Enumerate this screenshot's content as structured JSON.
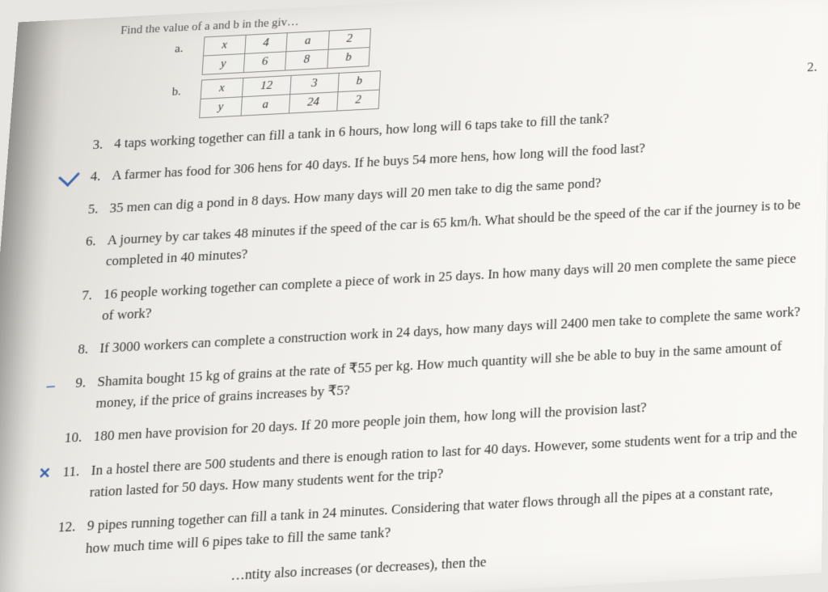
{
  "q2": {
    "prompt": "Find the value of a and b in the giv…",
    "tables": {
      "a": {
        "label": "a.",
        "rows": [
          [
            "x",
            "4",
            "a",
            "2"
          ],
          [
            "y",
            "6",
            "8",
            "b"
          ]
        ]
      },
      "b": {
        "label": "b.",
        "rows": [
          [
            "x",
            "12",
            "3",
            "b"
          ],
          [
            "y",
            "a",
            "24",
            "2"
          ]
        ]
      }
    }
  },
  "questions": [
    {
      "n": "3.",
      "mark": "",
      "text": "4 taps working together can fill a tank in 6 hours, how long will 6 taps take to fill the tank?"
    },
    {
      "n": "4.",
      "mark": "tick",
      "text": "A farmer has food for 306 hens for 40 days. If he buys 54 more hens, how long will the food last?"
    },
    {
      "n": "5.",
      "mark": "",
      "text": "35 men can dig a pond in 8 days. How many days will 20 men take to dig the same pond?"
    },
    {
      "n": "6.",
      "mark": "",
      "text": "A journey by car takes 48 minutes if the speed of the car is 65 km/h. What should be the speed of the car if the journey is to be completed in 40 minutes?"
    },
    {
      "n": "7.",
      "mark": "",
      "text": "16 people working together can complete a piece of work in 25 days. In how many days will 20 men complete the same piece of work?"
    },
    {
      "n": "8.",
      "mark": "",
      "text": "If 3000 workers can complete a construction work in 24 days, how many days will 2400 men take to complete the same work?"
    },
    {
      "n": "9.",
      "mark": "dash",
      "text": "Shamita bought 15 kg of grains at the rate of ₹55 per kg. How much quantity will she be able to buy in the same amount of money, if the price of grains increases by ₹5?"
    },
    {
      "n": "10.",
      "mark": "",
      "text": "180 men have provision for 20 days. If 20 more people join them, how long will the provision last?"
    },
    {
      "n": "11.",
      "mark": "cross",
      "text": "In a hostel there are 500 students and there is enough ration to last for 40 days. However, some students went for a trip and the ration lasted for 50 days. How many students went for the trip?"
    },
    {
      "n": "12.",
      "mark": "",
      "text": "9 pipes running together can fill a tank in 24 minutes. Considering that water flows through all the pipes at a constant rate, how much time will 6 pipes take to fill the same tank?"
    }
  ],
  "rightMargin": {
    "m1": "2."
  },
  "footerFragment": "…ntity also increases (or decreases), then the"
}
